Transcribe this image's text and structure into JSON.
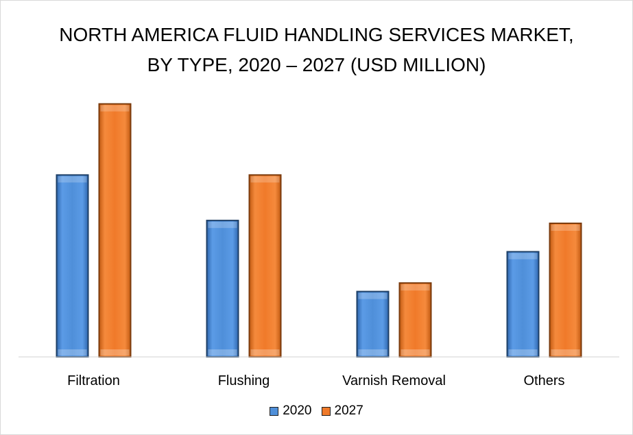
{
  "chart_data": {
    "type": "bar",
    "title_line1": "NORTH AMERICA FLUID HANDLING SERVICES MARKET,",
    "title_line2": "BY TYPE, 2020 – 2027 (USD MILLION)",
    "categories": [
      "Filtration",
      "Flushing",
      "Varnish Removal",
      "Others"
    ],
    "series": [
      {
        "name": "2020",
        "values": [
          64,
          48,
          23,
          37
        ],
        "color": "#4f8fd9"
      },
      {
        "name": "2027",
        "values": [
          89,
          64,
          26,
          47
        ],
        "color": "#f07a2a"
      }
    ],
    "ylim": [
      0,
      100
    ],
    "grid": false,
    "legend_position": "bottom"
  }
}
